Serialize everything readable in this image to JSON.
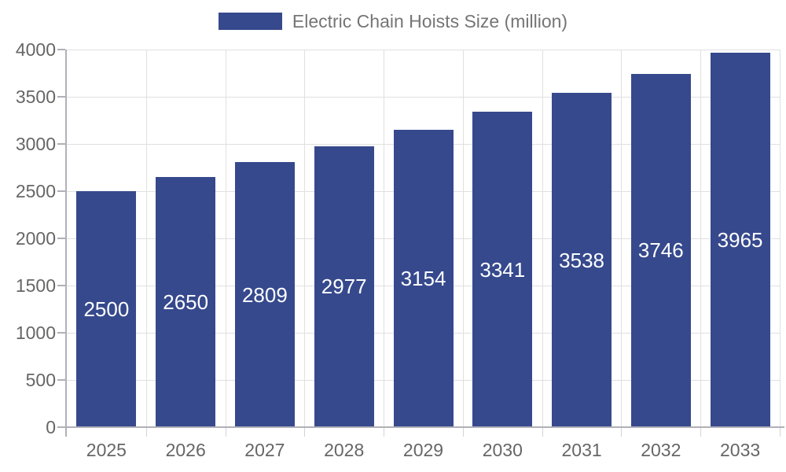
{
  "legend": {
    "label": "Electric Chain Hoists Size (million)"
  },
  "chart_data": {
    "type": "bar",
    "title": "Electric Chain Hoists Size (million)",
    "categories": [
      "2025",
      "2026",
      "2027",
      "2028",
      "2029",
      "2030",
      "2031",
      "2032",
      "2033"
    ],
    "values": [
      2500,
      2650,
      2809,
      2977,
      3154,
      3341,
      3538,
      3746,
      3965
    ],
    "series": [
      {
        "name": "Electric Chain Hoists Size (million)",
        "values": [
          2500,
          2650,
          2809,
          2977,
          3154,
          3341,
          3538,
          3746,
          3965
        ]
      }
    ],
    "xlabel": "",
    "ylabel": "",
    "ylim": [
      0,
      4000
    ],
    "ytick_step": 500,
    "ytick_labels": [
      "0",
      "500",
      "1000",
      "1500",
      "2000",
      "2500",
      "3000",
      "3500",
      "4000"
    ],
    "grid": true,
    "legend_position": "top",
    "bar_value_labels": true,
    "colors": {
      "bar": "#36498D",
      "bar_label": "#FFFFFF",
      "grid": "#E0E0E0",
      "axis": "#B0B0B8",
      "x_tick": "#D4D4D8",
      "tick_label": "#666666",
      "legend_text": "#757575",
      "background": "#FFFFFF"
    }
  }
}
